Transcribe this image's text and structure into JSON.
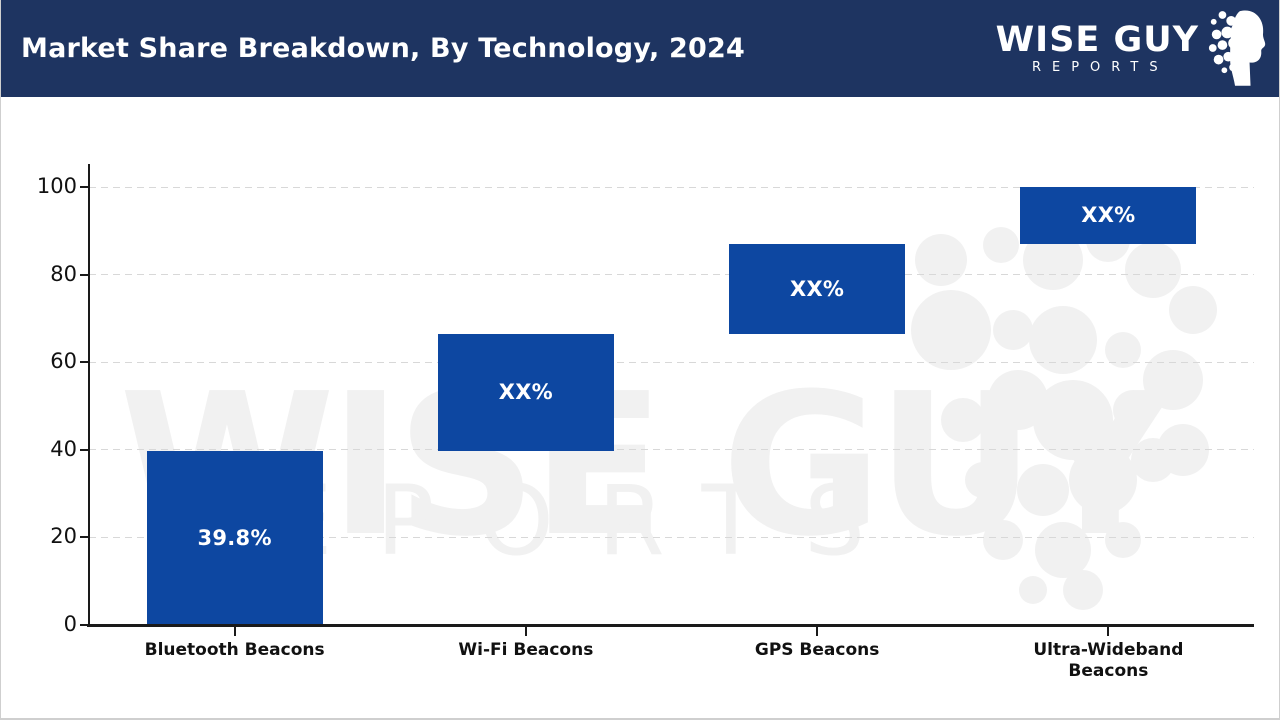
{
  "header": {
    "title": "Market Share Breakdown, By Technology, 2024",
    "logo": {
      "line1": "WISE GUY",
      "line2": "REPORTS"
    }
  },
  "watermark": {
    "line1": "WISE GUY",
    "line2": "REPORTS"
  },
  "colors": {
    "header_bg": "#1e3461",
    "bar": "#0d47a1",
    "bar_label": "#ffffff",
    "gridline": "#d8d8d8",
    "axis": "#1a1a1a",
    "watermark": "#f1f1f1"
  },
  "chart_data": {
    "type": "bar",
    "subtype": "waterfall",
    "title": "Market Share Breakdown, By Technology, 2024",
    "categories": [
      "Bluetooth Beacons",
      "Wi-Fi Beacons",
      "GPS Beacons",
      "Ultra-Wideband Beacons"
    ],
    "segments": [
      {
        "category": "Bluetooth Beacons",
        "start": 0,
        "end": 39.8,
        "label": "39.8%"
      },
      {
        "category": "Wi-Fi Beacons",
        "start": 39.8,
        "end": 66.4,
        "label": "XX%"
      },
      {
        "category": "GPS Beacons",
        "start": 66.4,
        "end": 87.1,
        "label": "XX%"
      },
      {
        "category": "Ultra-Wideband Beacons",
        "start": 87.1,
        "end": 100,
        "label": "XX%"
      }
    ],
    "yticks": [
      0,
      20,
      40,
      60,
      80,
      100
    ],
    "ylim": [
      0,
      100
    ],
    "xlabel": "",
    "ylabel": "",
    "grid": "horizontal-dashed",
    "legend": "none",
    "value_unit": "%"
  }
}
